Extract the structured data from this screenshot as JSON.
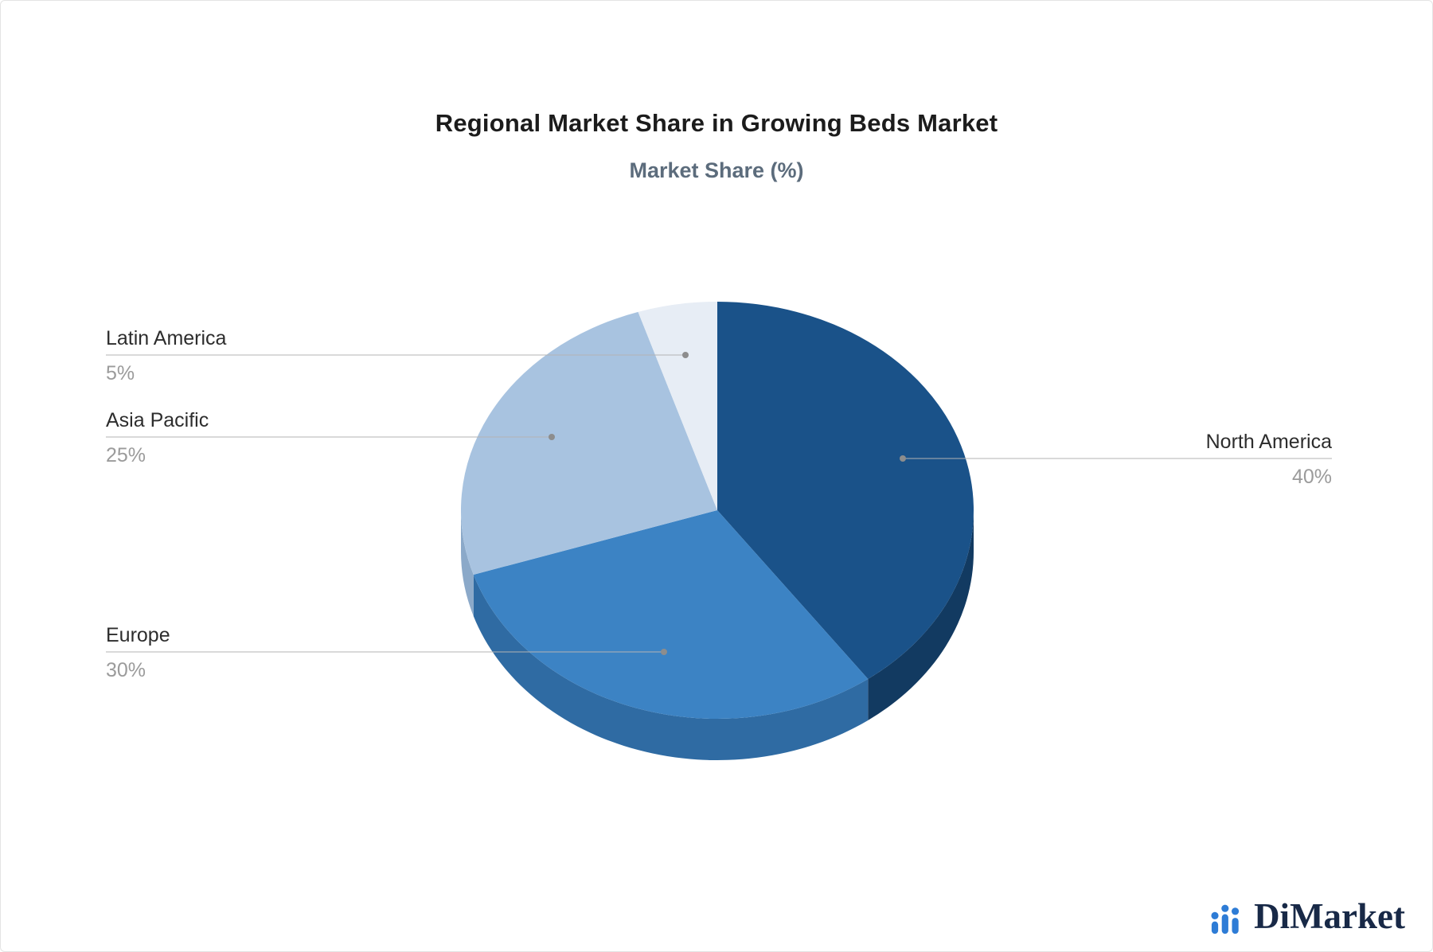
{
  "chart_data": {
    "type": "pie",
    "title": "Regional Market Share in Growing Beds Market",
    "subtitle": "Market Share (%)",
    "unit": "%",
    "effect": "3d",
    "direction": "clockwise",
    "start_angle_deg": 0,
    "legend_position": "none",
    "series": [
      {
        "name": "North America",
        "value": 40,
        "color": "#1a5289",
        "side_color": "#123a61"
      },
      {
        "name": "Europe",
        "value": 30,
        "color": "#3c83c4",
        "side_color": "#2f6ba3"
      },
      {
        "name": "Asia Pacific",
        "value": 25,
        "color": "#a8c3e0",
        "side_color": "#8ba9c9"
      },
      {
        "name": "Latin America",
        "value": 5,
        "color": "#e7edf5",
        "side_color": "#c8d3e3"
      }
    ],
    "callout_line_color": "#b3b3b3",
    "callout_dot_color": "#8d8d8d",
    "label_color": "#2d2d2d",
    "value_color": "#9b9b9b"
  },
  "header": {
    "title_color": "#1c1c1c",
    "subtitle_color": "#5c6c7c"
  },
  "logo": {
    "text": "DiMarket",
    "text_color": "#182947",
    "icon": "bar-chart-icon",
    "icon_color": "#2e7cd6"
  }
}
